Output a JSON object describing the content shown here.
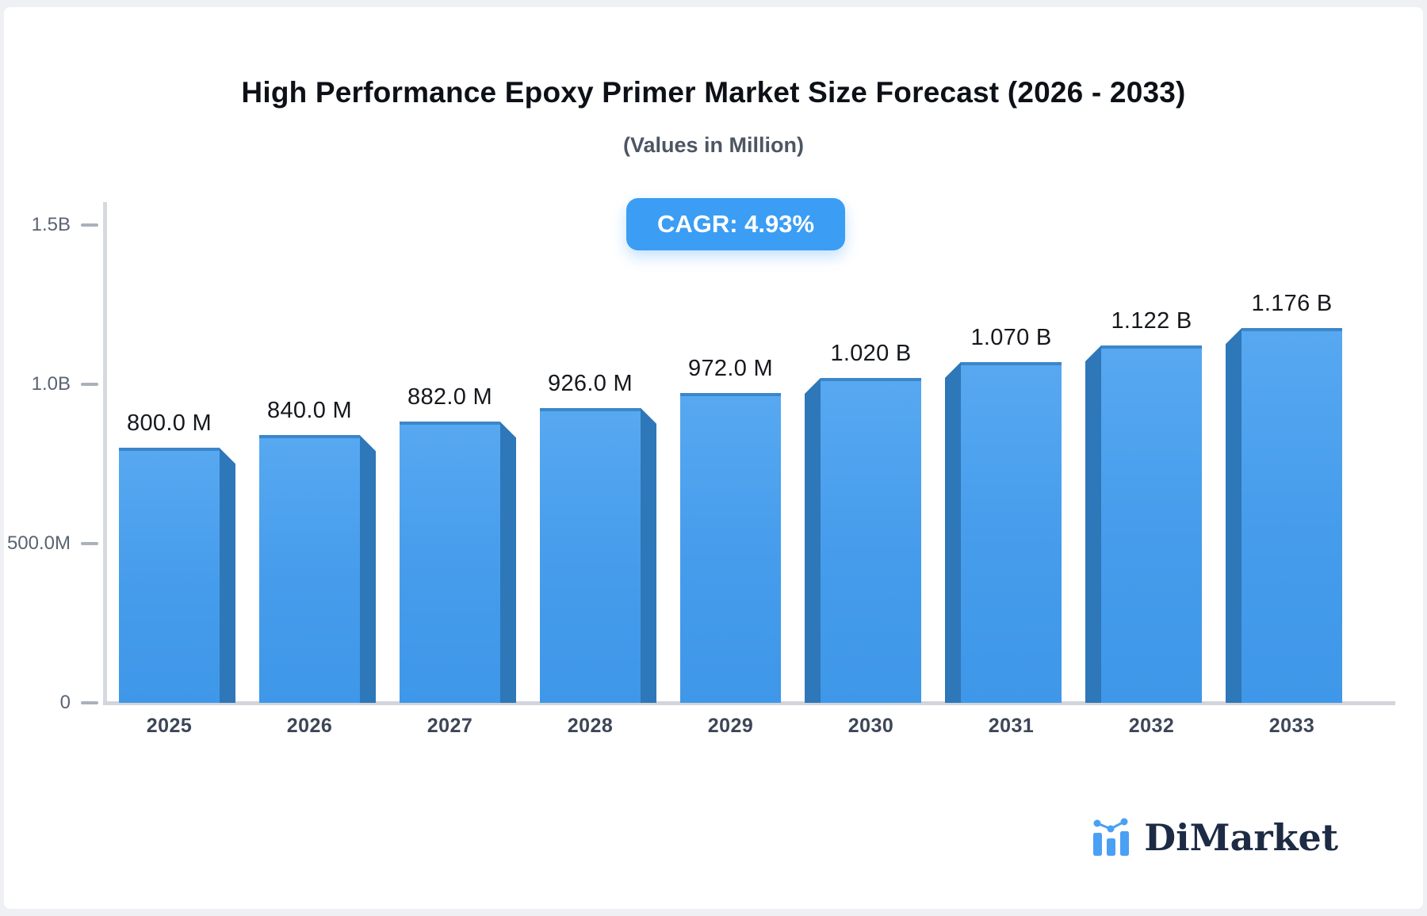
{
  "header": {
    "title": "High Performance Epoxy Primer Market Size Forecast (2026 - 2033)",
    "subtitle": "(Values in Million)",
    "cagr_label": "CAGR: 4.93%",
    "cagr_badge_color": "#3b9df4"
  },
  "chart_data": {
    "type": "bar",
    "title": "High Performance Epoxy Primer Market Size Forecast (2026 - 2033)",
    "subtitle": "(Values in Million)",
    "categories": [
      "2025",
      "2026",
      "2027",
      "2028",
      "2029",
      "2030",
      "2031",
      "2032",
      "2033"
    ],
    "values_millions": [
      800,
      840,
      882,
      926,
      972,
      1020,
      1070,
      1122,
      1176
    ],
    "value_labels": [
      "800.0 M",
      "840.0 M",
      "882.0 M",
      "926.0 M",
      "972.0 M",
      "1.020 B",
      "1.070 B",
      "1.122 B",
      "1.176 B"
    ],
    "bar_sides": [
      "right",
      "right",
      "right",
      "right",
      "none",
      "left",
      "left",
      "left",
      "left"
    ],
    "y_axis": {
      "ticks": [
        {
          "label": "0",
          "value": 0
        },
        {
          "label": "500.0M",
          "value": 500
        },
        {
          "label": "1.0B",
          "value": 1000
        },
        {
          "label": "1.5B",
          "value": 1500
        }
      ],
      "max": 1500
    },
    "grid": false,
    "legend_position": "none",
    "bar_color_top": "#57a8f1",
    "bar_color_bottom": "#3f97e9",
    "bar_side_color": "#2e77b8",
    "bar_top_edge_color": "#3c86ca",
    "axis_color": "#d2d5db"
  },
  "footer": {
    "brand": "DiMarket",
    "logo_icon": "mini-bar-chart-logo",
    "logo_color": "#4aa0f4"
  }
}
